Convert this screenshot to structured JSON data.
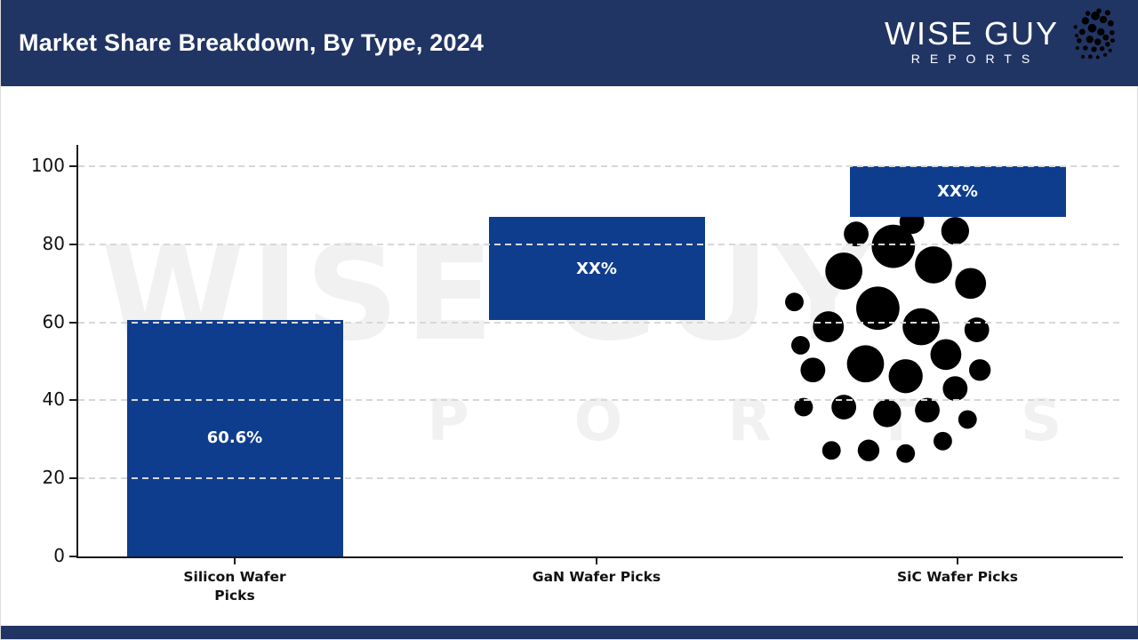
{
  "header": {
    "title": "Market Share Breakdown, By Type, 2024",
    "bg_color": "#213564",
    "logo_line1": "WISE GUY",
    "logo_line2": "REPORTS"
  },
  "watermark": {
    "line1": "WISE GUY",
    "line2": "R E P O R T S"
  },
  "footer": {
    "bg_color": "#213564"
  },
  "chart_data": {
    "type": "bar",
    "variant": "waterfall-breakdown",
    "title": "Market Share Breakdown, By Type, 2024",
    "categories": [
      "Silicon Wafer\nPicks",
      "GaN Wafer Picks",
      "SiC Wafer Picks"
    ],
    "bars": [
      {
        "category": "Silicon Wafer Picks",
        "start": 0,
        "end": 60.6,
        "label": "60.6%"
      },
      {
        "category": "GaN Wafer Picks",
        "start": 60.6,
        "end": 87,
        "label": "XX%"
      },
      {
        "category": "SiC Wafer Picks",
        "start": 87,
        "end": 100,
        "label": "XX%"
      }
    ],
    "xlabel": "",
    "ylabel": "",
    "ylim": [
      0,
      100
    ],
    "yticks": [
      0,
      20,
      40,
      60,
      80,
      100
    ],
    "grid": "horizontal-dashed",
    "legend": "none",
    "bar_color": "#0e3d8e",
    "bar_label_color": "#ffffff",
    "axis_color": "#1a1a1a",
    "grid_color": "#d8d8d8"
  }
}
